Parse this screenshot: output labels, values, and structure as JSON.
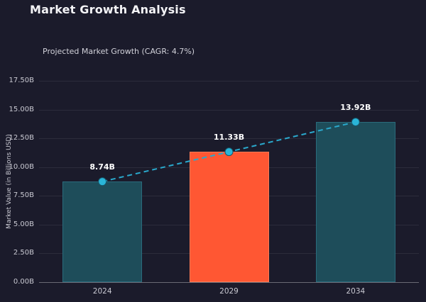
{
  "header": {
    "title": "Market Growth Analysis",
    "subtitle": "Projected Market Growth (CAGR: 4.7%)"
  },
  "chart_data": {
    "type": "bar",
    "title": "Market Growth Analysis",
    "subtitle": "Projected Market Growth (CAGR: 4.7%)",
    "categories": [
      "2024",
      "2029",
      "2034"
    ],
    "values": [
      8.74,
      11.33,
      13.92
    ],
    "value_labels": [
      "8.74B",
      "11.33B",
      "13.92B"
    ],
    "xlabel": "",
    "ylabel": "Market Value (in Billions USD)",
    "ylim": [
      0,
      17.5
    ],
    "yticks": [
      0,
      2.5,
      5,
      7.5,
      10,
      12.5,
      15,
      17.5
    ],
    "ytick_labels": [
      "0.00B",
      "2.50B",
      "5.00B",
      "7.50B",
      "10.00B",
      "12.50B",
      "15.00B",
      "17.50B"
    ],
    "grid": true,
    "legend": "none",
    "series_note": "bars with dashed trend line and circular markers connecting bar tops",
    "background_color": "#1b1b2b",
    "bar_colors": [
      "#1e4d5a",
      "#ff5733",
      "#1e4d5a"
    ],
    "bar_edge_colors": [
      "#2a6b7c",
      "#ff7a55",
      "#2a6b7c"
    ],
    "trend_line_color": "#2aa8cc",
    "marker_color": "#2ab5d8",
    "grid_color": "rgba(255,255,255,0.08)",
    "tick_color": "#c9c9d2",
    "value_label_color": "#ffffff"
  }
}
